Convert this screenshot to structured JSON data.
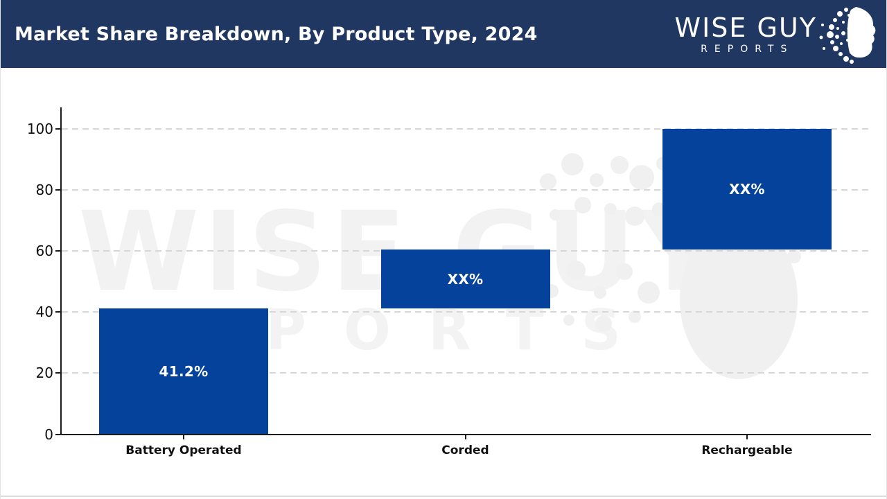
{
  "header": {
    "title": "Market Share Breakdown, By Product Type, 2024",
    "logo": {
      "line1": "WISE GUY",
      "line2": "REPORTS"
    }
  },
  "watermark": {
    "line1": "WISE GUY",
    "line2": "REPORTS"
  },
  "chart_data": {
    "type": "bar",
    "variant": "waterfall",
    "title": "Market Share Breakdown, By Product Type, 2024",
    "categories": [
      "Battery Operated",
      "Corded",
      "Rechargeable"
    ],
    "segments": [
      {
        "category": "Battery Operated",
        "start": 0,
        "end": 41.2,
        "label": "41.2%"
      },
      {
        "category": "Corded",
        "start": 41.2,
        "end": 60.4,
        "label": "XX%"
      },
      {
        "category": "Rechargeable",
        "start": 60.4,
        "end": 100,
        "label": "XX%"
      }
    ],
    "y_ticks": [
      0,
      20,
      40,
      60,
      80,
      100
    ],
    "ylim": [
      0,
      107
    ],
    "xlabel": "",
    "ylabel": "",
    "grid": "horizontal-dashed",
    "legend": "none",
    "colors": {
      "bar": "#04429b",
      "grid": "#d7d7d7",
      "axis": "#1a1a1a",
      "bar_label_text": "#ffffff",
      "header_bg": "#203762",
      "watermark": "#f2f2f2"
    }
  }
}
